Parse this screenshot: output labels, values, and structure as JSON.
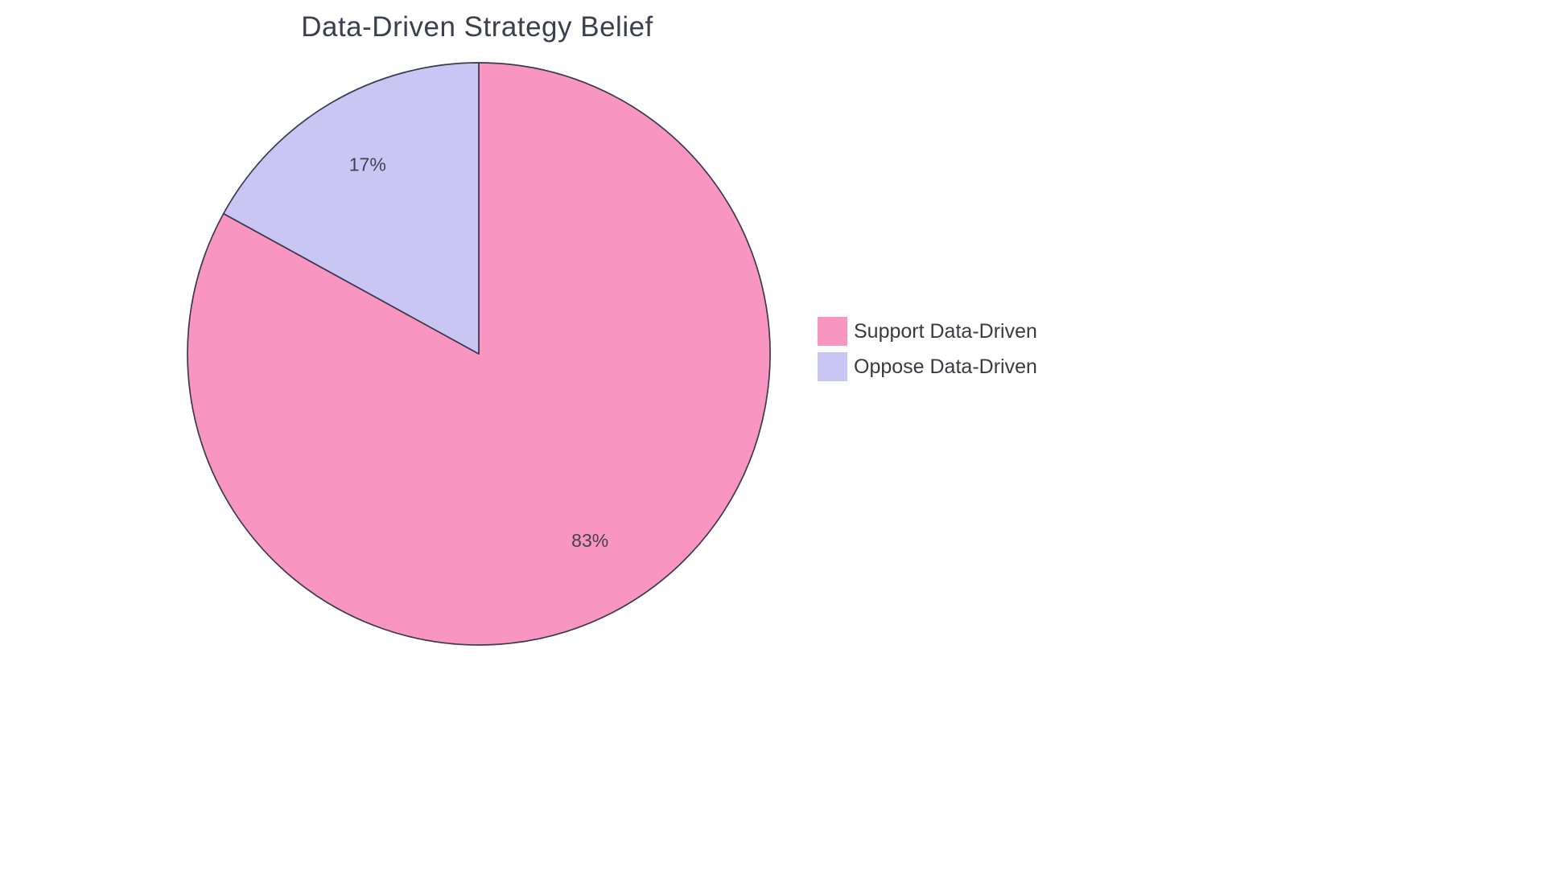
{
  "chart_data": {
    "type": "pie",
    "title": "Data-Driven Strategy Belief",
    "labels": [
      "Support Data-Driven",
      "Oppose Data-Driven"
    ],
    "values": [
      83,
      17
    ],
    "percent_labels": [
      "83%",
      "17%"
    ],
    "colors": [
      "#F895C1",
      "#C9C6F4"
    ],
    "stroke_color": "#3A3A50",
    "start_angle_deg": 0,
    "direction": "clockwise",
    "legend_position": "right",
    "label_radius_fraction": 0.75
  },
  "legend": {
    "items": [
      {
        "label": "Support Data-Driven",
        "color": "#F895C1"
      },
      {
        "label": "Oppose Data-Driven",
        "color": "#C9C6F4"
      }
    ]
  }
}
